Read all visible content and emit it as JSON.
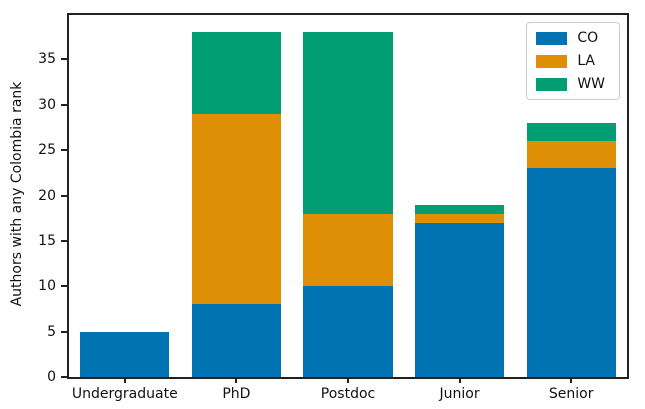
{
  "chart_data": {
    "type": "bar",
    "stacked": true,
    "title": "",
    "xlabel": "",
    "ylabel": "Authors with any Colombia rank",
    "categories": [
      "Undergraduate",
      "PhD",
      "Postdoc",
      "Junior",
      "Senior"
    ],
    "series": [
      {
        "name": "CO",
        "color": "#0173b2",
        "values": [
          5,
          8,
          10,
          17,
          23
        ]
      },
      {
        "name": "LA",
        "color": "#de8f05",
        "values": [
          0,
          21,
          8,
          1,
          3
        ]
      },
      {
        "name": "WW",
        "color": "#029e73",
        "values": [
          0,
          9,
          20,
          1,
          2
        ]
      }
    ],
    "stack_totals": [
      5,
      38,
      38,
      19,
      28
    ],
    "ylim": [
      0,
      39.9
    ],
    "yticks": [
      0,
      5,
      10,
      15,
      20,
      25,
      30,
      35
    ],
    "bar_width_fraction": 0.8,
    "grid": false,
    "legend_position": "upper right",
    "axis_color": "#222222"
  }
}
